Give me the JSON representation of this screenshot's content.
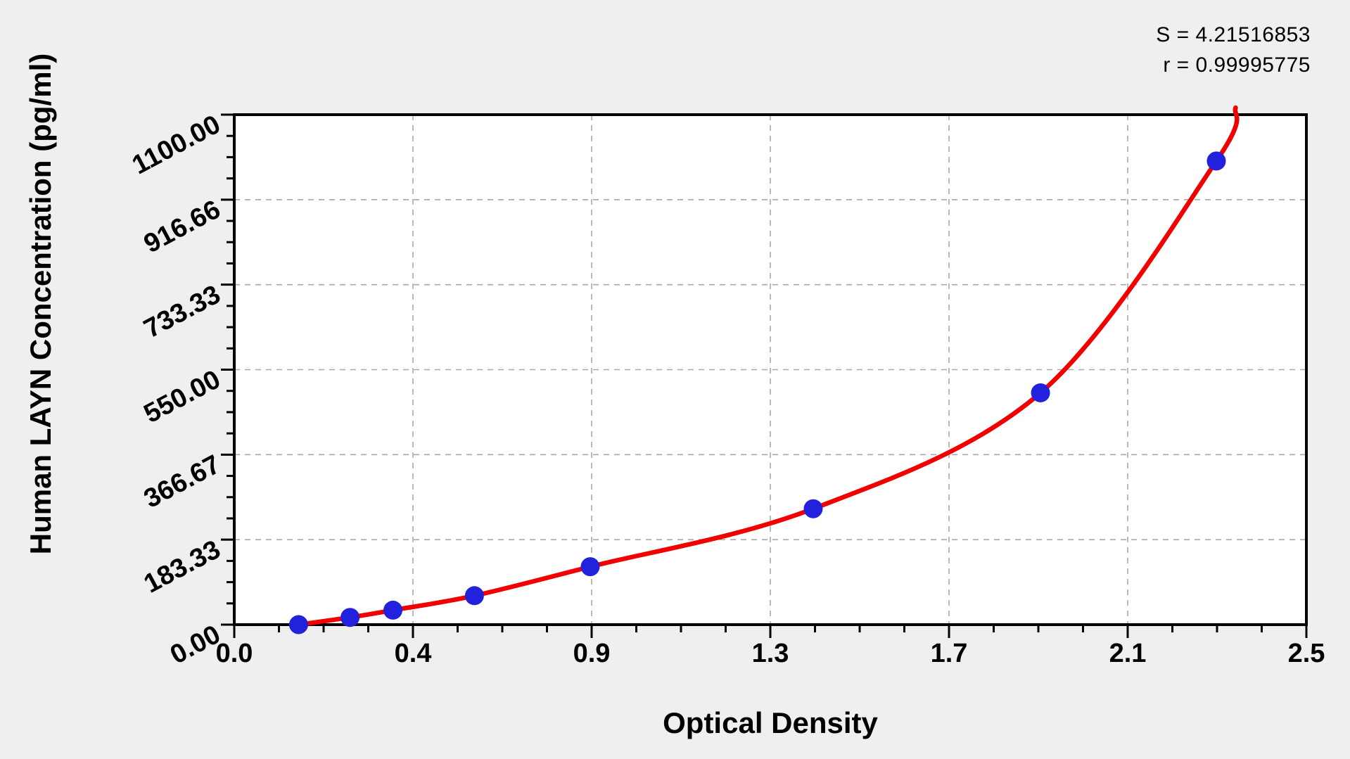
{
  "annotation": {
    "s_line": "S = 4.21516853",
    "r_line": "r = 0.99995775"
  },
  "colors": {
    "background": "#EFEFEF",
    "plot_background": "#FFFFFF",
    "grid": "#A9A9A9",
    "axis": "#000000",
    "curve": "#F20000",
    "marker": "#2222DD"
  },
  "chart_data": {
    "type": "scatter",
    "title": "",
    "xlabel": "Optical Density",
    "ylabel": "Human LAYN Concentration (pg/ml)",
    "xlim": [
      0,
      2.5
    ],
    "ylim": [
      0,
      1100
    ],
    "x_tick_labels": [
      "0.0",
      "0.4",
      "0.9",
      "1.3",
      "1.7",
      "2.1",
      "2.5"
    ],
    "y_tick_labels": [
      "0.00",
      "183.33",
      "366.67",
      "550.00",
      "733.33",
      "916.66",
      "1100.00"
    ],
    "grid": "dashed-major",
    "legend": "none",
    "fit_statistics": {
      "S": 4.21516853,
      "r": 0.99995775
    },
    "series": [
      {
        "name": "standard-points",
        "type": "scatter",
        "marker": "circle",
        "points": [
          {
            "od": 0.15,
            "conc": 0
          },
          {
            "od": 0.27,
            "conc": 15.6
          },
          {
            "od": 0.37,
            "conc": 31.2
          },
          {
            "od": 0.56,
            "conc": 62.5
          },
          {
            "od": 0.83,
            "conc": 125
          },
          {
            "od": 1.35,
            "conc": 250
          },
          {
            "od": 1.88,
            "conc": 500
          },
          {
            "od": 2.29,
            "conc": 1000
          }
        ]
      },
      {
        "name": "fitted-curve",
        "type": "line",
        "curve_end": {
          "od": 2.335,
          "conc": 1115
        }
      }
    ]
  }
}
